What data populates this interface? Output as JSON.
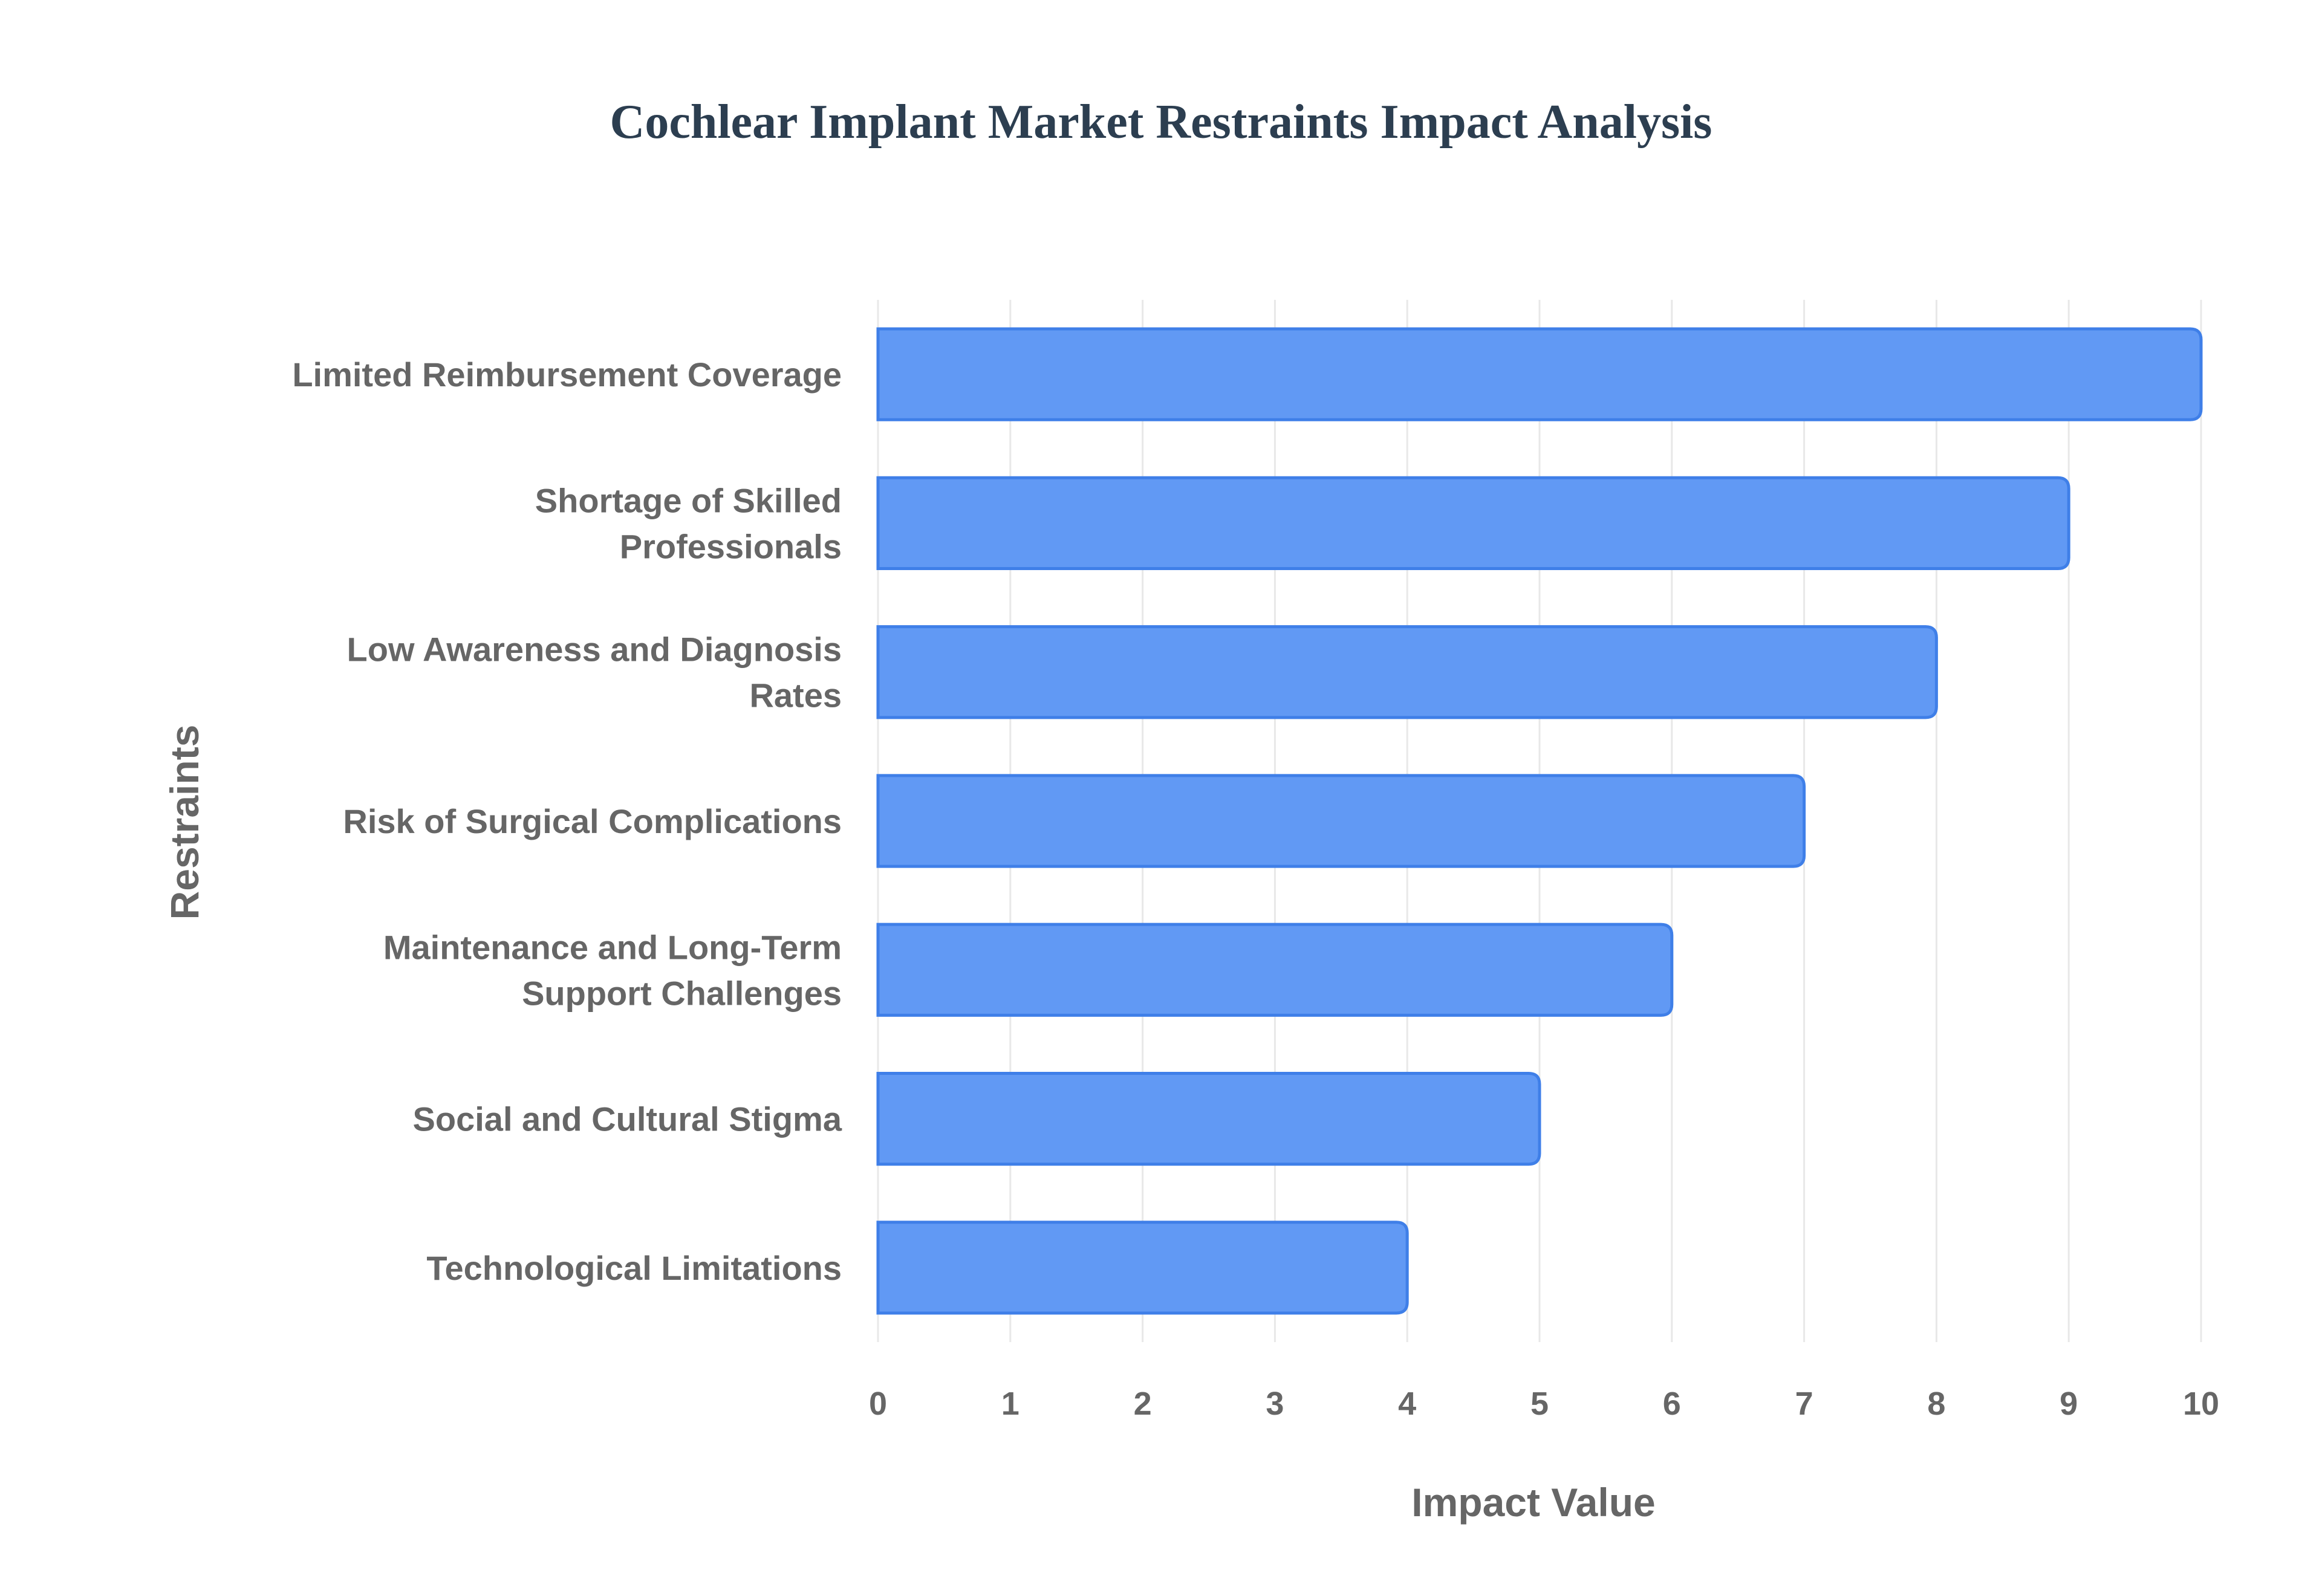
{
  "chart_data": {
    "type": "bar",
    "orientation": "horizontal",
    "title": "Cochlear Implant Market Restraints Impact Analysis",
    "xlabel": "Impact Value",
    "ylabel": "Restraints",
    "categories": [
      "Limited Reimbursement Coverage",
      "Shortage of Skilled Professionals",
      "Low Awareness and Diagnosis Rates",
      "Risk of Surgical Complications",
      "Maintenance and Long-Term Support Challenges",
      "Social and Cultural Stigma",
      "Technological Limitations"
    ],
    "category_lines": [
      [
        "Limited Reimbursement Coverage"
      ],
      [
        "Shortage of Skilled",
        "Professionals"
      ],
      [
        "Low Awareness and Diagnosis",
        "Rates"
      ],
      [
        "Risk of Surgical Complications"
      ],
      [
        "Maintenance and Long-Term",
        "Support Challenges"
      ],
      [
        "Social and Cultural Stigma"
      ],
      [
        "Technological Limitations"
      ]
    ],
    "values": [
      10,
      9,
      8,
      7,
      6,
      5,
      4
    ],
    "xlim": [
      0,
      10
    ],
    "xticks": [
      "0",
      "1",
      "2",
      "3",
      "4",
      "5",
      "6",
      "7",
      "8",
      "9",
      "10"
    ],
    "grid": true,
    "legend": "none"
  },
  "colors": {
    "bar_fill": "#6199f4",
    "bar_stroke": "#3f7fe8",
    "title": "#2c3e50",
    "label": "#666666",
    "grid": "#e8e8e8"
  }
}
